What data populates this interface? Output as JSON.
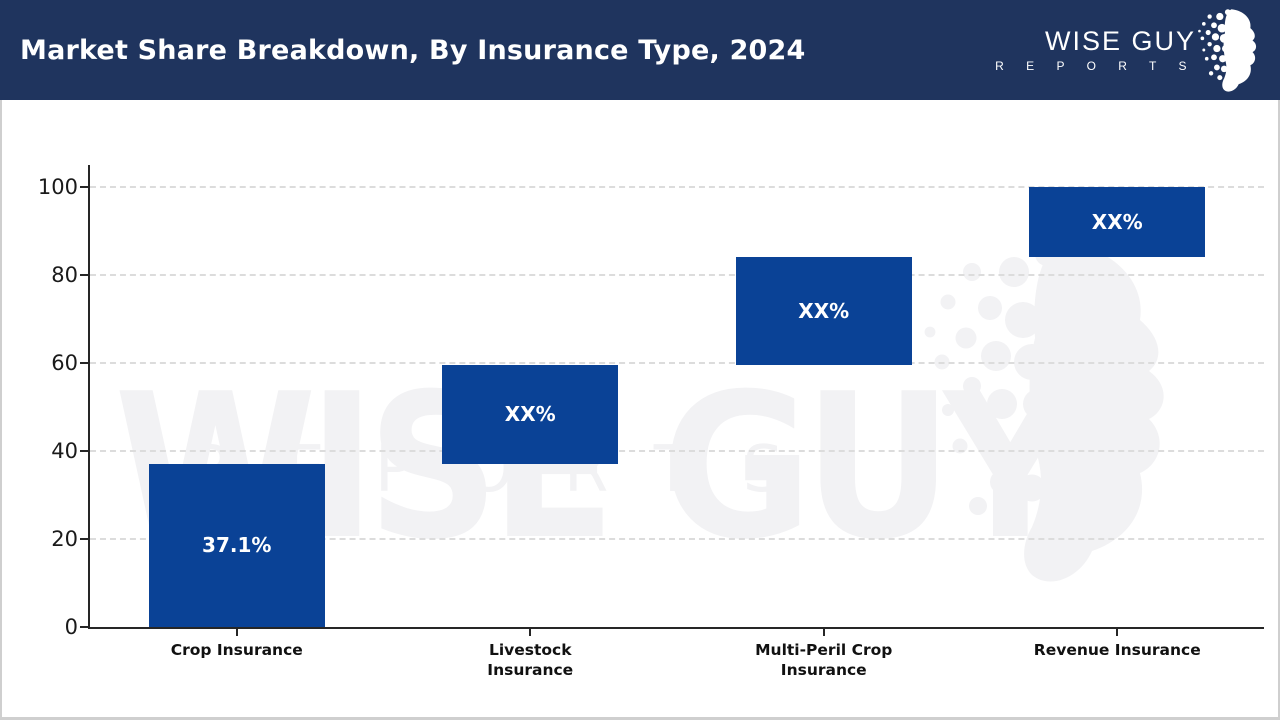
{
  "header": {
    "bg": "#1f345e",
    "title": "Market Share Breakdown, By Insurance Type, 2024",
    "title_color": "#ffffff",
    "logo": {
      "line1": "WISE GUY",
      "line2": "R E P O R T S",
      "color": "#ffffff",
      "icon": "dotted-head-profile-icon"
    }
  },
  "watermark": {
    "line1": "WISE GUY",
    "line2": "REPORTS",
    "color": "#f2f2f4",
    "icon": "dotted-head-profile-icon"
  },
  "chart_data": {
    "type": "bar",
    "subtype": "floating-waterfall",
    "title": "Market Share Breakdown, By Insurance Type, 2024",
    "categories": [
      "Crop Insurance",
      "Livestock Insurance",
      "Multi-Peril Crop Insurance",
      "Revenue Insurance"
    ],
    "category_lines": [
      [
        "Crop Insurance"
      ],
      [
        "Livestock",
        "Insurance"
      ],
      [
        "Multi-Peril Crop",
        "Insurance"
      ],
      [
        "Revenue Insurance"
      ]
    ],
    "series": [
      {
        "category": "Crop Insurance",
        "start": 0,
        "end": 37.1,
        "label": "37.1%"
      },
      {
        "category": "Livestock Insurance",
        "start": 37.1,
        "end": 59.6,
        "label": "XX%"
      },
      {
        "category": "Multi-Peril Crop Insurance",
        "start": 59.6,
        "end": 84.1,
        "label": "XX%"
      },
      {
        "category": "Revenue Insurance",
        "start": 84.1,
        "end": 100,
        "label": "XX%"
      }
    ],
    "bar_color": "#0a4296",
    "bar_label_color": "#ffffff",
    "yticks": [
      0,
      20,
      40,
      60,
      80,
      100
    ],
    "ylim": [
      0,
      105
    ],
    "xlabel": "",
    "ylabel": "",
    "grid": {
      "axis": "y",
      "style": "dashed",
      "color": "#dcdcdc"
    },
    "axis_color": "#262626",
    "legend": "none"
  }
}
